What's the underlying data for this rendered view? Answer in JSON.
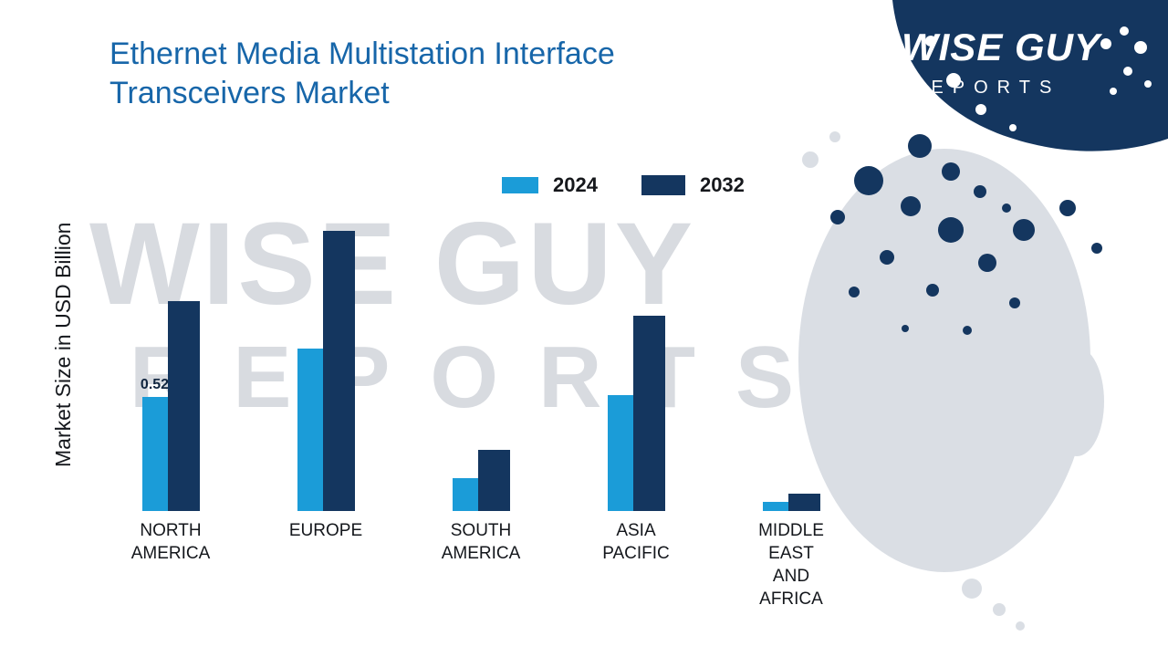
{
  "title": "Ethernet Media Multistation Interface Transceivers Market",
  "logo": {
    "name": "WISE GUY",
    "sub": "REPORTS"
  },
  "watermark": {
    "line1": "WISE GUY",
    "line2": "REPORTS"
  },
  "ylabel": "Market Size in USD Billion",
  "colors": {
    "series_2024": "#1b9cd8",
    "series_2032": "#14365f",
    "title_blue": "#1766a9",
    "watermark_gray": "#d8dbe0",
    "face_gray": "#dadee4"
  },
  "chart_data": {
    "type": "bar",
    "title": "Ethernet Media Multistation Interface Transceivers Market",
    "ylabel": "Market Size in USD Billion",
    "categories": [
      "NORTH AMERICA",
      "EUROPE",
      "SOUTH AMERICA",
      "ASIA PACIFIC",
      "MIDDLE EAST AND AFRICA"
    ],
    "series": [
      {
        "name": "2024",
        "color": "#1b9cd8",
        "values": [
          0.52,
          0.74,
          0.15,
          0.53,
          0.04
        ]
      },
      {
        "name": "2032",
        "color": "#14365f",
        "values": [
          0.96,
          1.28,
          0.28,
          0.89,
          0.08
        ]
      }
    ],
    "ylim": [
      0,
      1.4
    ],
    "grid": false,
    "legend_position": "top",
    "annotations": [
      {
        "category_index": 0,
        "series_index": 0,
        "text": "0.52"
      }
    ]
  }
}
